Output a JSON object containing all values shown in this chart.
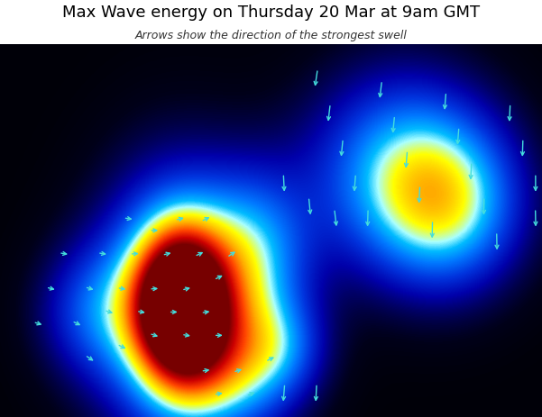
{
  "title": "Max Wave energy on Thursday 20 Mar at 9am GMT",
  "subtitle": "Arrows show the direction of the strongest swell",
  "title_fontsize": 13,
  "subtitle_fontsize": 9,
  "background_color": "#ffffff",
  "fig_width": 6.01,
  "fig_height": 4.63,
  "dpi": 100,
  "lon_min": -52,
  "lon_max": 32,
  "lat_min": 48,
  "lat_max": 80,
  "colormap_nodes": [
    [
      0.0,
      "#000008"
    ],
    [
      0.04,
      "#00001a"
    ],
    [
      0.1,
      "#000055"
    ],
    [
      0.18,
      "#0000aa"
    ],
    [
      0.28,
      "#0033dd"
    ],
    [
      0.38,
      "#0077ff"
    ],
    [
      0.46,
      "#00bbff"
    ],
    [
      0.52,
      "#aaffff"
    ],
    [
      0.6,
      "#ffff00"
    ],
    [
      0.7,
      "#ffaa00"
    ],
    [
      0.8,
      "#ff4400"
    ],
    [
      0.9,
      "#cc0000"
    ],
    [
      1.0,
      "#770000"
    ]
  ],
  "arrow_color": "#44dddd",
  "arrow_data": [
    [
      -3,
      77,
      195
    ],
    [
      7,
      76,
      192
    ],
    [
      17,
      75,
      188
    ],
    [
      27,
      74,
      185
    ],
    [
      -1,
      74,
      192
    ],
    [
      9,
      73,
      190
    ],
    [
      19,
      72,
      188
    ],
    [
      29,
      71,
      183
    ],
    [
      1,
      71,
      190
    ],
    [
      11,
      70,
      188
    ],
    [
      21,
      69,
      185
    ],
    [
      31,
      68,
      180
    ],
    [
      3,
      68,
      188
    ],
    [
      13,
      67,
      185
    ],
    [
      23,
      66,
      182
    ],
    [
      31,
      65,
      178
    ],
    [
      5,
      65,
      183
    ],
    [
      15,
      64,
      182
    ],
    [
      25,
      63,
      178
    ],
    [
      -8,
      68,
      175
    ],
    [
      -4,
      66,
      170
    ],
    [
      0,
      65,
      168
    ],
    [
      -32,
      65,
      95
    ],
    [
      -28,
      64,
      90
    ],
    [
      -24,
      65,
      82
    ],
    [
      -20,
      65,
      75
    ],
    [
      -36,
      62,
      95
    ],
    [
      -31,
      62,
      88
    ],
    [
      -26,
      62,
      82
    ],
    [
      -21,
      62,
      75
    ],
    [
      -16,
      62,
      70
    ],
    [
      -38,
      59,
      100
    ],
    [
      -33,
      59,
      95
    ],
    [
      -28,
      59,
      88
    ],
    [
      -23,
      59,
      82
    ],
    [
      -18,
      60,
      75
    ],
    [
      -40,
      56,
      105
    ],
    [
      -35,
      57,
      100
    ],
    [
      -30,
      57,
      95
    ],
    [
      -25,
      57,
      90
    ],
    [
      -20,
      57,
      85
    ],
    [
      -38,
      53,
      110
    ],
    [
      -33,
      54,
      105
    ],
    [
      -28,
      55,
      100
    ],
    [
      -23,
      55,
      95
    ],
    [
      -18,
      55,
      90
    ],
    [
      -42,
      62,
      95
    ],
    [
      -44,
      59,
      98
    ],
    [
      -46,
      56,
      100
    ],
    [
      -20,
      52,
      85
    ],
    [
      -15,
      52,
      80
    ],
    [
      -10,
      53,
      75
    ],
    [
      -18,
      50,
      85
    ],
    [
      -13,
      50,
      78
    ],
    [
      -8,
      50,
      188
    ],
    [
      -3,
      50,
      185
    ]
  ]
}
